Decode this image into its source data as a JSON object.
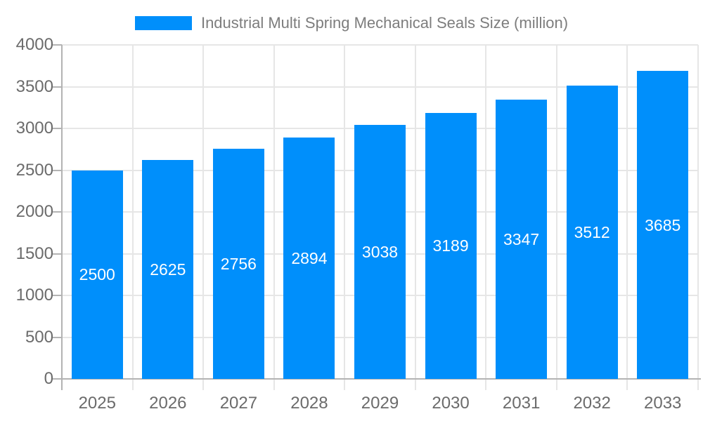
{
  "chart_data": {
    "type": "bar",
    "title": "",
    "legend": {
      "label": "Industrial Multi Spring Mechanical Seals Size (million)",
      "position": "top"
    },
    "categories": [
      "2025",
      "2026",
      "2027",
      "2028",
      "2029",
      "2030",
      "2031",
      "2032",
      "2033"
    ],
    "series": [
      {
        "name": "Industrial Multi Spring Mechanical Seals Size (million)",
        "values": [
          2500,
          2625,
          2756,
          2894,
          3038,
          3189,
          3347,
          3512,
          3685
        ]
      }
    ],
    "xlabel": "",
    "ylabel": "",
    "ylim": [
      0,
      4000
    ],
    "ytick_step": 500,
    "yticks": [
      0,
      500,
      1000,
      1500,
      2000,
      2500,
      3000,
      3500,
      4000
    ],
    "grid": true,
    "data_labels": "inside-center",
    "colors": {
      "bar": "#008FFB",
      "grid_line": "#e6e6e6",
      "axis_line": "#b3b3b3",
      "axis_label": "#6b6b6b",
      "legend_text": "#7d7d7d",
      "data_label": "#ffffff",
      "background": "#ffffff"
    }
  }
}
